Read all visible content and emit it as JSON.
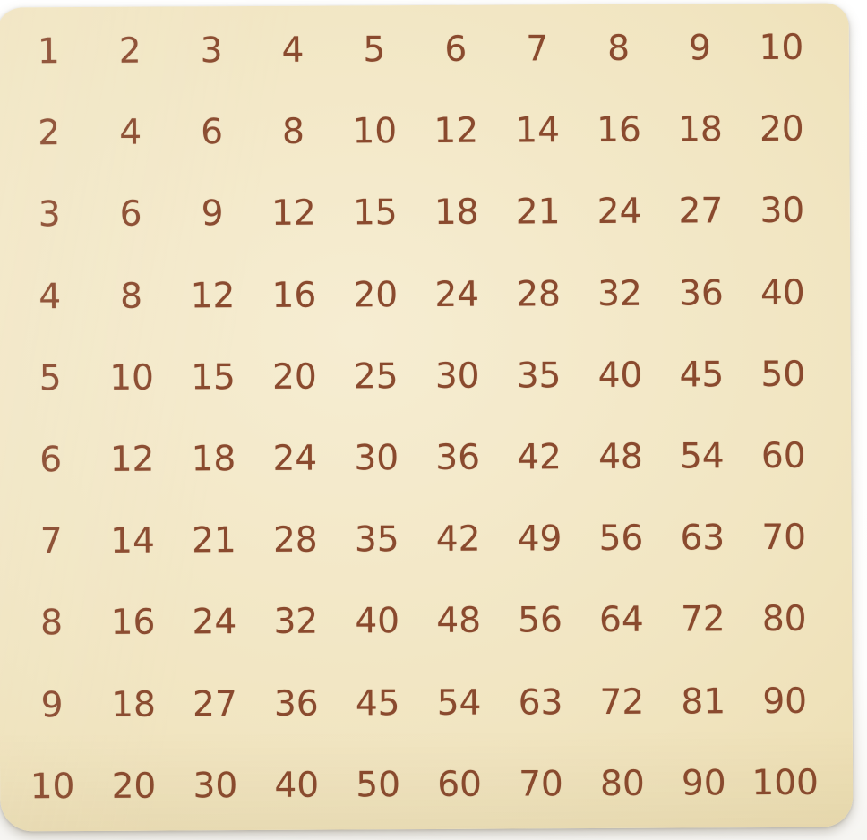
{
  "page": {
    "background_color": "#ffffff"
  },
  "board": {
    "description_name": "multiplication-table-board",
    "surface_color": "#f1e5c1",
    "surface_highlight_color": "#f6edd2",
    "surface_edge_color": "#e7d6a4",
    "digit_color": "#8a4a2e",
    "rows": [
      [
        "1",
        "2",
        "3",
        "4",
        "5",
        "6",
        "7",
        "8",
        "9",
        "10"
      ],
      [
        "2",
        "4",
        "6",
        "8",
        "10",
        "12",
        "14",
        "16",
        "18",
        "20"
      ],
      [
        "3",
        "6",
        "9",
        "12",
        "15",
        "18",
        "21",
        "24",
        "27",
        "30"
      ],
      [
        "4",
        "8",
        "12",
        "16",
        "20",
        "24",
        "28",
        "32",
        "36",
        "40"
      ],
      [
        "5",
        "10",
        "15",
        "20",
        "25",
        "30",
        "35",
        "40",
        "45",
        "50"
      ],
      [
        "6",
        "12",
        "18",
        "24",
        "30",
        "36",
        "42",
        "48",
        "54",
        "60"
      ],
      [
        "7",
        "14",
        "21",
        "28",
        "35",
        "42",
        "49",
        "56",
        "63",
        "70"
      ],
      [
        "8",
        "16",
        "24",
        "32",
        "40",
        "48",
        "56",
        "64",
        "72",
        "80"
      ],
      [
        "9",
        "18",
        "27",
        "36",
        "45",
        "54",
        "63",
        "72",
        "81",
        "90"
      ],
      [
        "10",
        "20",
        "30",
        "40",
        "50",
        "60",
        "70",
        "80",
        "90",
        "100"
      ]
    ]
  },
  "chart_data": {
    "type": "table",
    "title": "Multiplication table 1-10",
    "rows": [
      [
        1,
        2,
        3,
        4,
        5,
        6,
        7,
        8,
        9,
        10
      ],
      [
        2,
        4,
        6,
        8,
        10,
        12,
        14,
        16,
        18,
        20
      ],
      [
        3,
        6,
        9,
        12,
        15,
        18,
        21,
        24,
        27,
        30
      ],
      [
        4,
        8,
        12,
        16,
        20,
        24,
        28,
        32,
        36,
        40
      ],
      [
        5,
        10,
        15,
        20,
        25,
        30,
        35,
        40,
        45,
        50
      ],
      [
        6,
        12,
        18,
        24,
        30,
        36,
        42,
        48,
        54,
        60
      ],
      [
        7,
        14,
        21,
        28,
        35,
        42,
        49,
        56,
        63,
        70
      ],
      [
        8,
        16,
        24,
        32,
        40,
        48,
        56,
        64,
        72,
        80
      ],
      [
        9,
        18,
        27,
        36,
        45,
        54,
        63,
        72,
        81,
        90
      ],
      [
        10,
        20,
        30,
        40,
        50,
        60,
        70,
        80,
        90,
        100
      ]
    ]
  }
}
